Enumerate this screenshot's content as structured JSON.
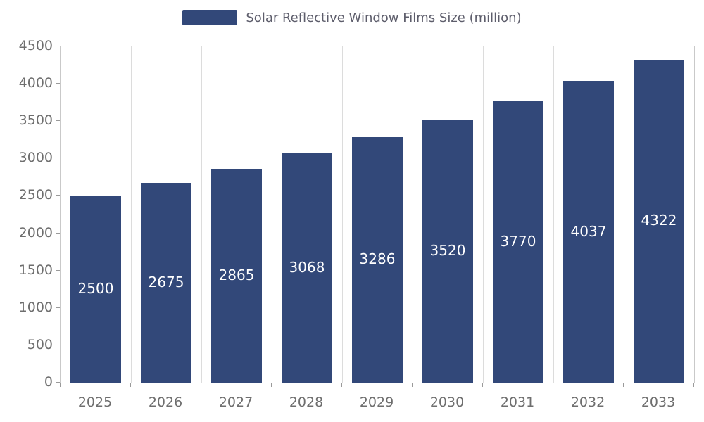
{
  "chart_data": {
    "type": "bar",
    "title": "Solar Reflective Window Films Size (million)",
    "categories": [
      "2025",
      "2026",
      "2027",
      "2028",
      "2029",
      "2030",
      "2031",
      "2032",
      "2033"
    ],
    "values": [
      2500,
      2675,
      2865,
      3068,
      3286,
      3520,
      3770,
      4037,
      4322
    ],
    "xlabel": "",
    "ylabel": "",
    "ylim": [
      0,
      4500
    ],
    "ytick_step": 500,
    "bar_color": "#324879",
    "value_label_color": "#ffffff",
    "axis_text_color": "#6e6e6e",
    "grid_color": "#dcdcdc",
    "grid": "vertical-splitlines",
    "legend_position": "top-center"
  }
}
